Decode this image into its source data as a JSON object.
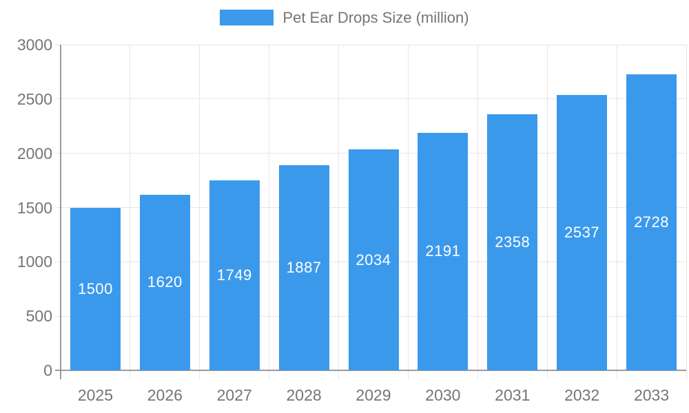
{
  "chart_data": {
    "type": "bar",
    "title": "Pet Ear Drops Size (million)",
    "categories": [
      "2025",
      "2026",
      "2027",
      "2028",
      "2029",
      "2030",
      "2031",
      "2032",
      "2033"
    ],
    "values": [
      1500,
      1620,
      1749,
      1887,
      2034,
      2191,
      2358,
      2537,
      2728
    ],
    "xlabel": "",
    "ylabel": "",
    "ylim": [
      0,
      3000
    ],
    "yticks": [
      0,
      500,
      1000,
      1500,
      2000,
      2500,
      3000
    ],
    "grid": true,
    "legend_position": "top",
    "colors": {
      "bar": "#3B99EC",
      "bar_label": "#FFFFFF",
      "axis_line": "#9A9A9A",
      "gridline": "#E6E6E6",
      "tick_label": "#757575",
      "legend_text": "#757575",
      "background": "#FFFFFF"
    }
  }
}
